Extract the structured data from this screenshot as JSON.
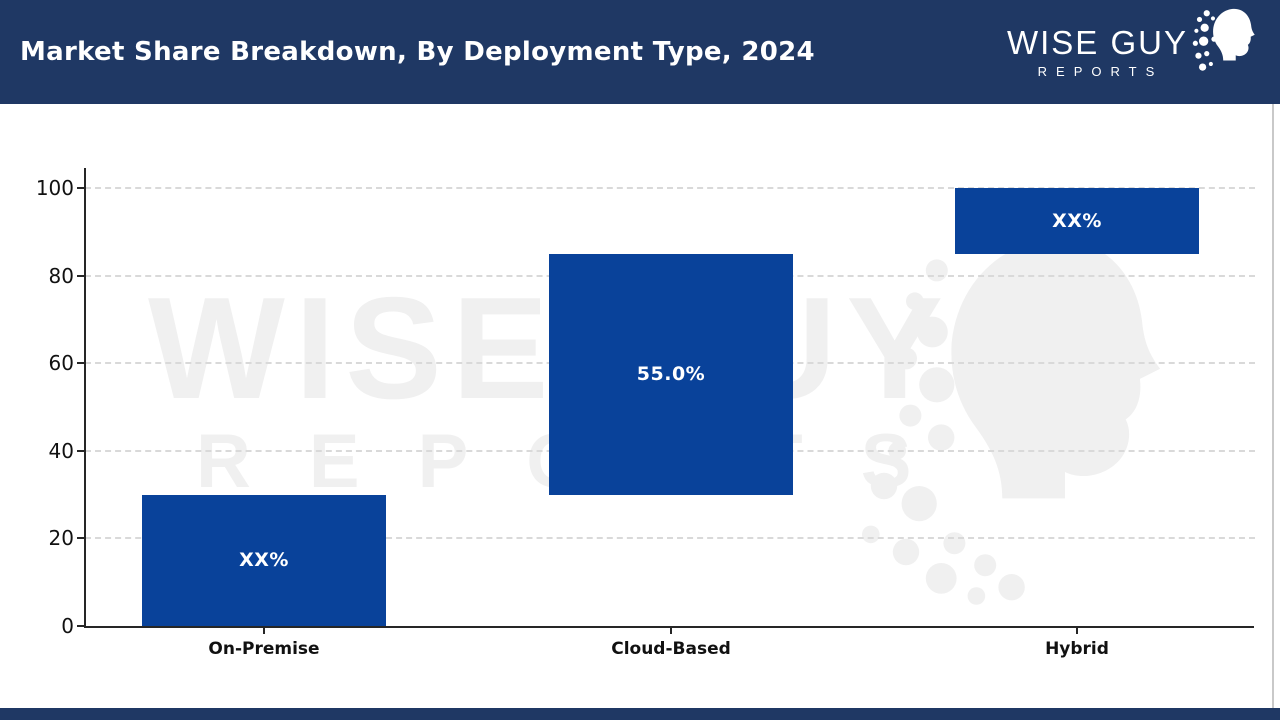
{
  "header": {
    "title": "Market Share Breakdown, By Deployment Type, 2024",
    "logo": {
      "primary": "WISE GUY",
      "secondary": "REPORTS"
    }
  },
  "watermark": {
    "primary": "WISE GUY",
    "secondary": "REPORTS"
  },
  "chart_data": {
    "type": "bar",
    "variant": "floating-waterfall",
    "title": "Market Share Breakdown, By Deployment Type, 2024",
    "categories": [
      "On-Premise",
      "Cloud-Based",
      "Hybrid"
    ],
    "series": [
      {
        "name": "Market Share (%)",
        "segments": [
          {
            "category": "On-Premise",
            "start": 0,
            "end": 30,
            "label": "XX%"
          },
          {
            "category": "Cloud-Based",
            "start": 30,
            "end": 85,
            "label": "55.0%"
          },
          {
            "category": "Hybrid",
            "start": 85,
            "end": 100,
            "label": "XX%"
          }
        ]
      }
    ],
    "values": [
      30,
      55,
      15
    ],
    "labels": [
      "XX%",
      "55.0%",
      "XX%"
    ],
    "xlabel": "",
    "ylabel": "",
    "ylim": [
      0,
      100
    ],
    "yticks": [
      0,
      20,
      40,
      60,
      80,
      100
    ],
    "grid": "horizontal-dashed",
    "legend": "none",
    "bar_color": "#09429a",
    "bar_label_color": "#ffffff"
  },
  "colors": {
    "header_bg": "#1f3864",
    "footer_bg": "#1f3864",
    "bar": "#09429a",
    "grid": "#d9d9d9",
    "axis": "#262626",
    "watermark": "#f0f0f0",
    "scrollbar": "#c9c9c9"
  }
}
